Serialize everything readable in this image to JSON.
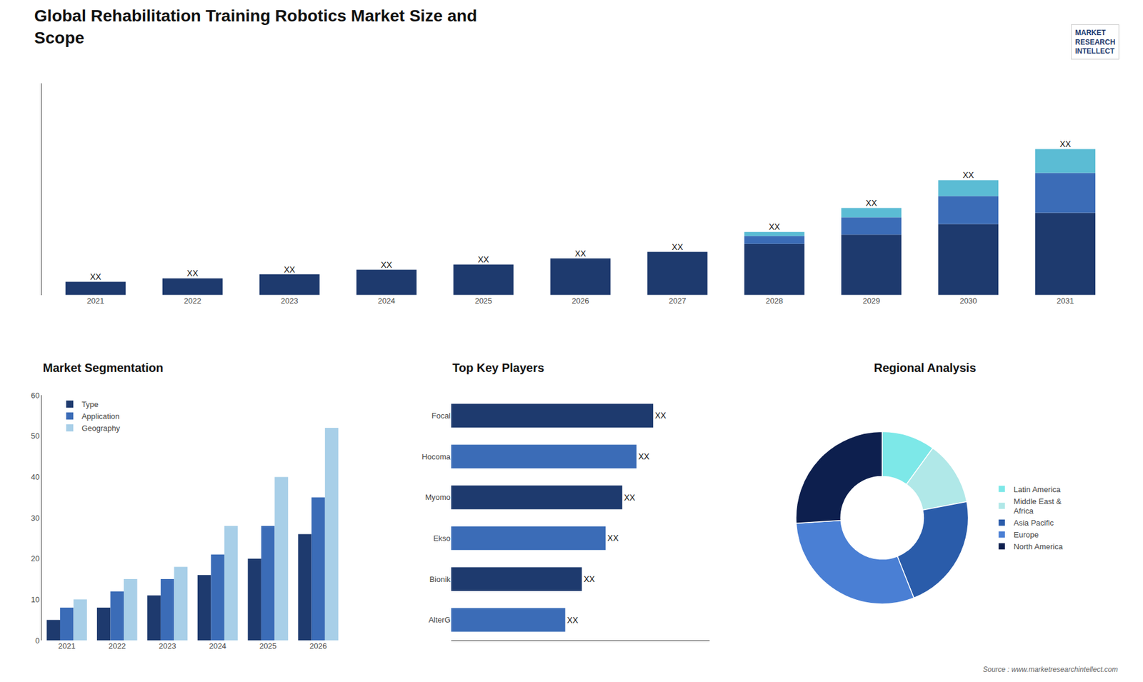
{
  "title": "Global Rehabilitation Training Robotics Market Size and\nScope",
  "annotations": [
    "MARKET\nRESEARCH\nINTELLECT",
    "Source : www.marketresearchintellect.com"
  ],
  "chart_data": [
    {
      "type": "bar",
      "stacked": true,
      "categories": [
        "2021",
        "2022",
        "2023",
        "2024",
        "2025",
        "2026",
        "2027",
        "2028",
        "2029",
        "2030",
        "2031"
      ],
      "series": [
        {
          "color": "#1e3a6e",
          "values": [
            1.0,
            1.25,
            1.55,
            1.9,
            2.3,
            2.75,
            3.25,
            3.85,
            4.55,
            5.35,
            6.2
          ]
        },
        {
          "color": "#3b6cb7",
          "values": [
            0.0,
            0.0,
            0.0,
            0.0,
            0.0,
            0.0,
            0.0,
            0.6,
            1.3,
            2.1,
            3.0
          ]
        },
        {
          "color": "#5bbcd4",
          "values": [
            0.0,
            0.0,
            0.0,
            0.0,
            0.0,
            0.0,
            0.0,
            0.3,
            0.7,
            1.2,
            1.8
          ]
        }
      ],
      "value_labels": [
        "XX",
        "XX",
        "XX",
        "XX",
        "XX",
        "XX",
        "XX",
        "XX",
        "XX",
        "XX",
        "XX"
      ],
      "ylim": [
        0,
        15.95
      ],
      "tick_labels": "x",
      "grid": false
    },
    {
      "type": "bar",
      "title": "Market Segmentation",
      "categories": [
        "2021",
        "2022",
        "2023",
        "2024",
        "2025",
        "2026"
      ],
      "series": [
        {
          "name": "Type",
          "color": "#1e3a6e",
          "values": [
            5,
            8,
            11,
            16,
            20,
            26
          ]
        },
        {
          "name": "Application",
          "color": "#3b6cb7",
          "values": [
            8,
            12,
            15,
            21,
            28,
            35
          ]
        },
        {
          "name": "Geography",
          "color": "#a8cfe8",
          "values": [
            10,
            15,
            18,
            28,
            40,
            52
          ]
        }
      ],
      "ylim": [
        0,
        60
      ],
      "yticks": [
        0,
        10,
        20,
        30,
        40,
        50,
        60
      ],
      "legend": "upper left",
      "grid": false
    },
    {
      "type": "bar",
      "orientation": "horizontal",
      "title": "Top Key Players",
      "categories": [
        "Focal",
        "Hocoma",
        "Myomo",
        "Ekso",
        "Bionik",
        "AlterG"
      ],
      "values": [
        8.5,
        7.8,
        7.2,
        6.5,
        5.5,
        4.8
      ],
      "colors": [
        "#1e3a6e",
        "#3b6cb7",
        "#1e3a6e",
        "#3b6cb7",
        "#1e3a6e",
        "#3b6cb7"
      ],
      "value_labels": [
        "XX",
        "XX",
        "XX",
        "XX",
        "XX",
        "XX"
      ],
      "xlim": [
        0,
        10.88
      ],
      "tick_labels": "y",
      "grid": false
    },
    {
      "type": "pie",
      "title": "Regional Analysis",
      "categories": [
        "Latin America",
        "Middle East &\nAfrica",
        "Asia Pacific",
        "Europe",
        "North America"
      ],
      "values": [
        10,
        12,
        22,
        30,
        26
      ],
      "colors": [
        "#7de8e8",
        "#b0e8e8",
        "#2a5caa",
        "#4a7fd4",
        "#0d1f4e"
      ],
      "legend": "right"
    }
  ]
}
